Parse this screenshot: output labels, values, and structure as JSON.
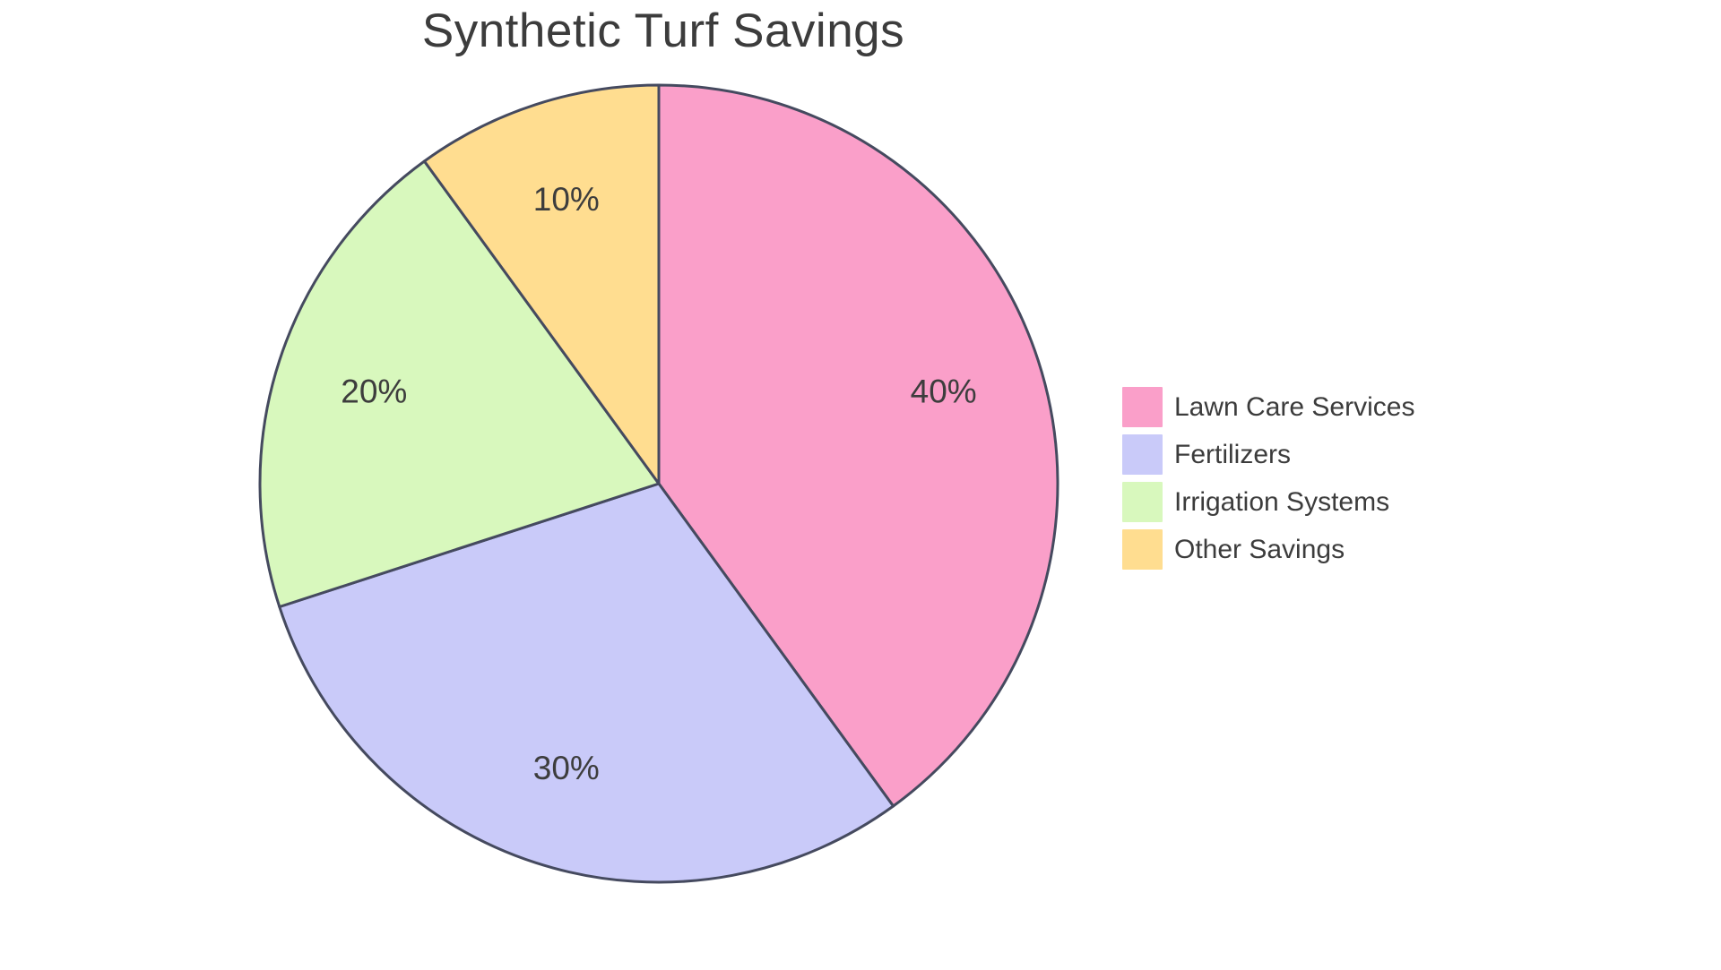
{
  "title": "Synthetic Turf Savings",
  "colors": {
    "background": "#FFFFFF",
    "title_text": "#3C3C3C",
    "slice_label_text": "#3D3D3D",
    "legend_text": "#3C3C3C",
    "stroke": "#454A5F"
  },
  "chart_data": {
    "type": "pie",
    "title": "Synthetic Turf Savings",
    "categories": [
      "Lawn Care Services",
      "Fertilizers",
      "Irrigation Systems",
      "Other Savings"
    ],
    "values": [
      40,
      30,
      20,
      10
    ],
    "value_labels": [
      "40%",
      "30%",
      "20%",
      "10%"
    ],
    "unit": "%",
    "slice_colors": [
      "#FA9FC9",
      "#C9CAF9",
      "#D8F8BD",
      "#FFDD90"
    ],
    "stroke_color": "#454A5F",
    "start_angle_deg": 0,
    "direction": "clockwise",
    "grid": false,
    "legend_position": "right",
    "label_placement": "inside"
  }
}
